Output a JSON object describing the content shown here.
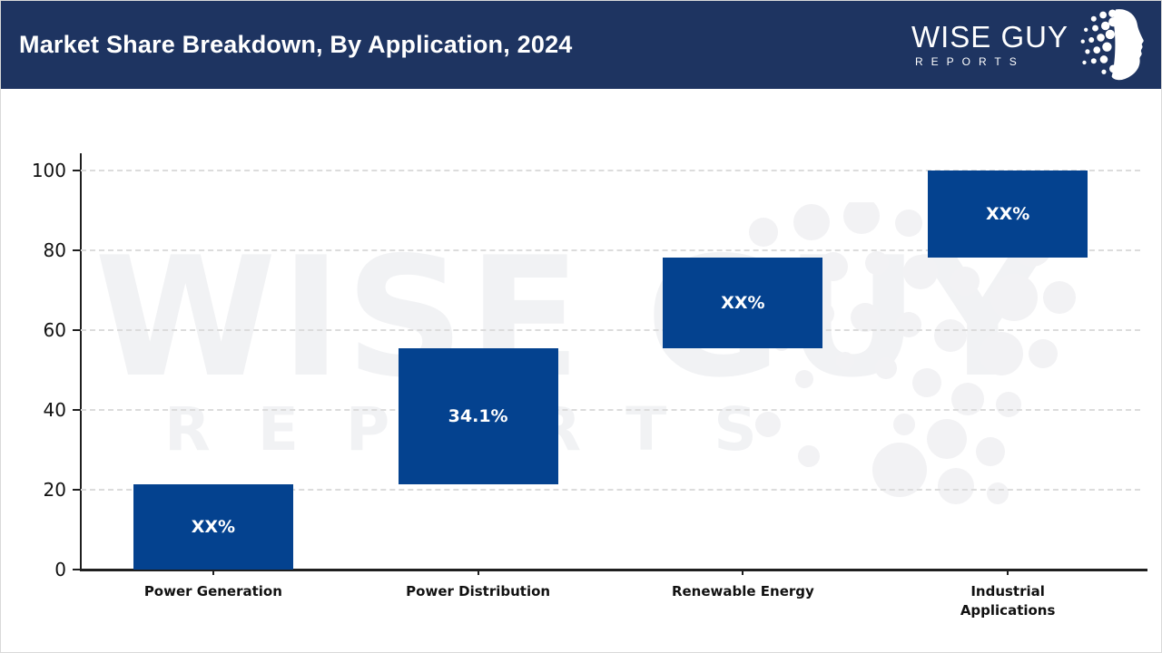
{
  "header": {
    "title": "Market Share Breakdown, By Application, 2024",
    "logo": {
      "name": "WISE GUY",
      "tagline": "REPORTS"
    }
  },
  "watermark": {
    "line1": "WISE GUY",
    "line2": "REPORTS"
  },
  "colors": {
    "header_bg": "#1e3461",
    "bar": "#04428f",
    "bar_label_text": "#ffffff",
    "grid": "#dcdcdc",
    "axis": "#1f1f1f",
    "tick_text": "#111111",
    "watermark": "#f1f2f4"
  },
  "chart_data": {
    "type": "bar",
    "subtype": "waterfall-stacked",
    "title": "Market Share Breakdown, By Application, 2024",
    "categories": [
      "Power Generation",
      "Power Distribution",
      "Renewable Energy",
      "Industrial\nApplications"
    ],
    "labels": [
      "XX%",
      "34.1%",
      "XX%",
      "XX%"
    ],
    "starts": [
      0,
      21.4,
      55.5,
      78.2
    ],
    "ends": [
      21.4,
      55.5,
      78.2,
      100
    ],
    "values": [
      21.4,
      34.1,
      22.7,
      21.8
    ],
    "ylim": [
      0,
      100
    ],
    "yticks": [
      0,
      20,
      40,
      60,
      80,
      100
    ],
    "xlabel": "",
    "ylabel": "",
    "grid": "horizontal-dashed",
    "legend": false
  }
}
